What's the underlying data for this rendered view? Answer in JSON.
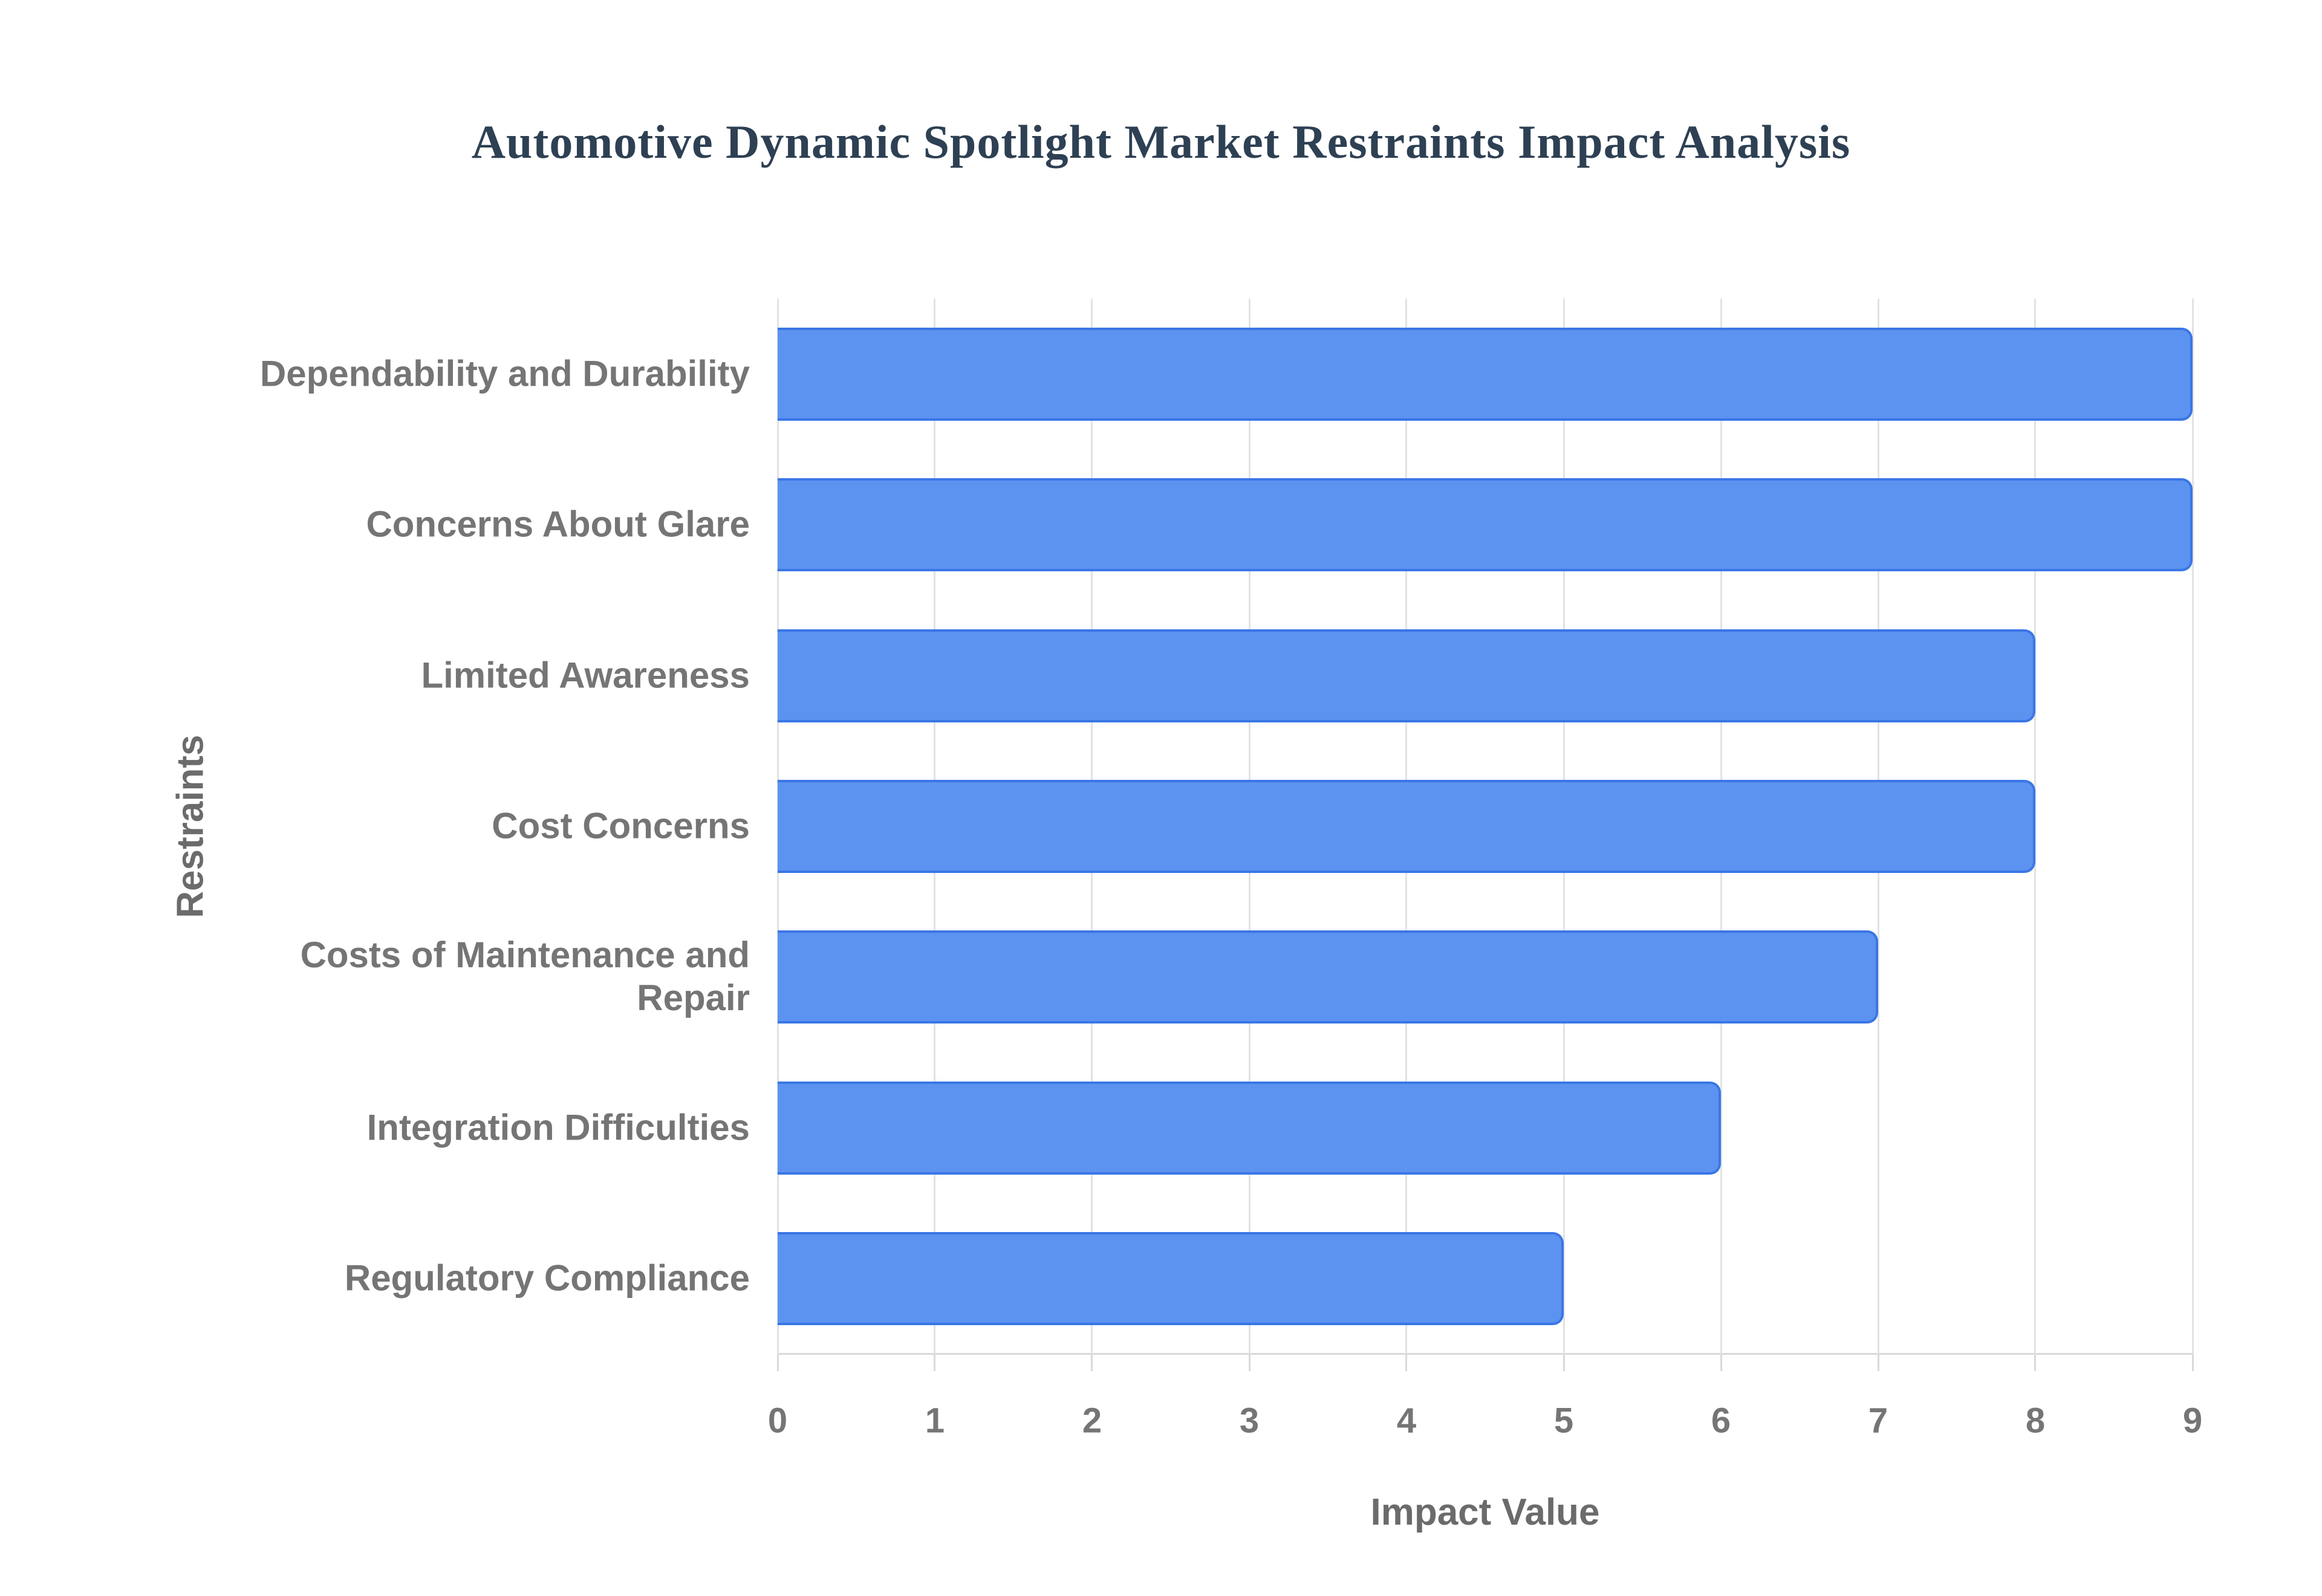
{
  "chart_data": {
    "type": "bar",
    "orientation": "horizontal",
    "title": "Automotive Dynamic Spotlight Market Restraints Impact Analysis",
    "xlabel": "Impact Value",
    "ylabel": "Restraints",
    "categories": [
      "Dependability and Durability",
      "Concerns About Glare",
      "Limited Awareness",
      "Cost Concerns",
      "Costs of Maintenance and Repair",
      "Integration Difficulties",
      "Regulatory Compliance"
    ],
    "values": [
      9,
      9,
      8,
      8,
      7,
      6,
      5
    ],
    "xlim": [
      0,
      9
    ],
    "x_ticks": [
      "0",
      "1",
      "2",
      "3",
      "4",
      "5",
      "6",
      "7",
      "8",
      "9"
    ],
    "grid": "vertical",
    "legend": "none",
    "colors": {
      "bar_fill": "#5c93f0",
      "bar_border": "#3a76e6",
      "grid": "#e2e2e2",
      "axis_line": "#d9d9d9",
      "title": "#2e4053",
      "tick_label": "#757575",
      "axis_title": "#6b6b6b",
      "background": "#ffffff"
    }
  }
}
